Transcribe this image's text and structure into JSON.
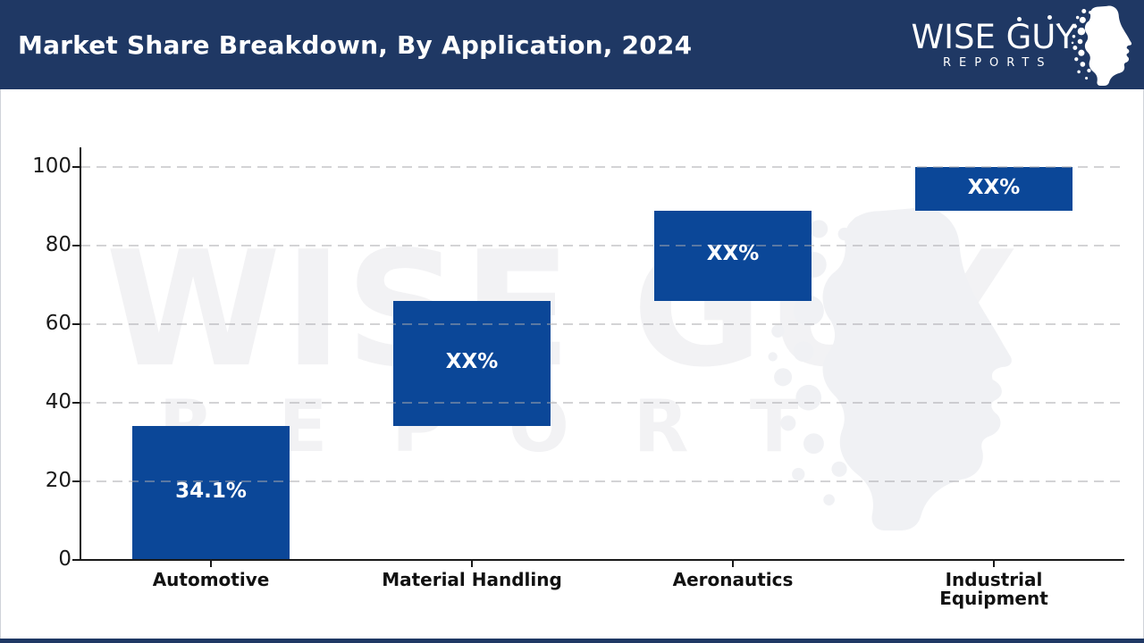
{
  "header": {
    "title": "Market Share Breakdown, By Application, 2024",
    "logo": {
      "name": "WISE GUY",
      "subtitle": "REPORTS"
    }
  },
  "watermark": {
    "name": "WISE GUY",
    "subtitle": "REPORTS"
  },
  "chart_data": {
    "type": "bar",
    "subtype": "waterfall-stacked-breakdown",
    "title": "Market Share Breakdown, By Application, 2024",
    "categories": [
      "Automotive",
      "Material Handling",
      "Aeronautics",
      "Industrial Equipment"
    ],
    "category_labels": [
      "Automotive",
      "Material Handling",
      "Aeronautics",
      "Industrial\nEquipment"
    ],
    "segments": [
      {
        "category": "Automotive",
        "start": 0,
        "end": 34.1,
        "value_label": "34.1%"
      },
      {
        "category": "Material Handling",
        "start": 34.1,
        "end": 66.0,
        "value_label": "XX%"
      },
      {
        "category": "Aeronautics",
        "start": 66.0,
        "end": 88.8,
        "value_label": "XX%"
      },
      {
        "category": "Industrial Equipment",
        "start": 88.8,
        "end": 100.0,
        "value_label": "XX%"
      }
    ],
    "xlabel": "",
    "ylabel": "",
    "ylim": [
      0,
      100
    ],
    "yticks": [
      0,
      20,
      40,
      60,
      80,
      100
    ],
    "grid": "horizontal-dashed",
    "legend": "none",
    "bar_color": "#0b4798",
    "bar_label_color": "#ffffff",
    "axis_color": "#1a1a1a"
  }
}
